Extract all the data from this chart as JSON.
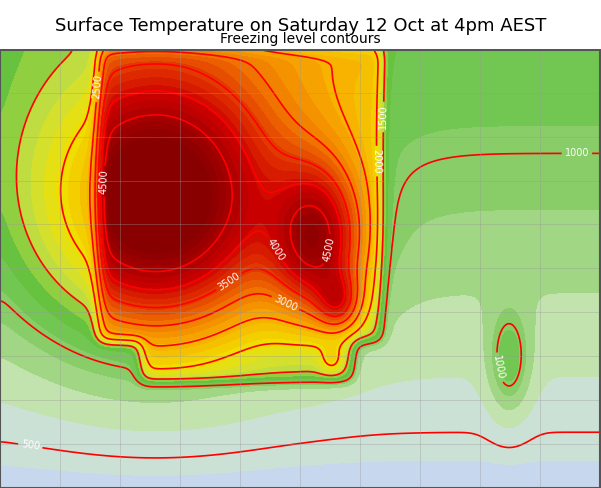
{
  "title": "Surface Temperature on Saturday 12 Oct at 4pm AEST",
  "subtitle": "Freezing level contours",
  "title_fontsize": 13,
  "subtitle_fontsize": 10,
  "background_color": "#ffffff",
  "ocean_color": "#b8cfe8",
  "border_color": "#333333",
  "figsize": [
    6.01,
    4.88
  ],
  "dpi": 100
}
